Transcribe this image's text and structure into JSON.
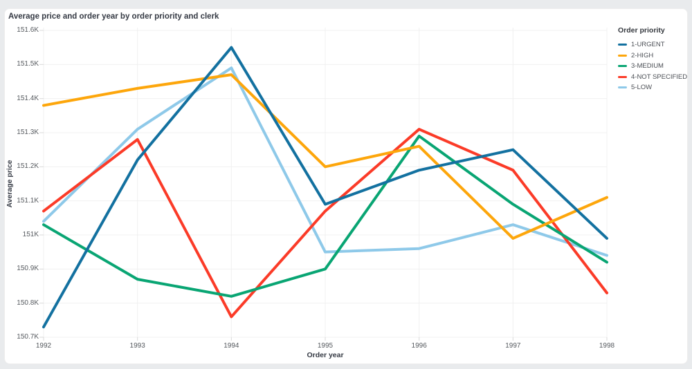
{
  "page": {
    "background": "#e9ebed",
    "card_background": "#ffffff"
  },
  "header": {
    "title": "Average price and order year by order priority and clerk"
  },
  "legend": {
    "title": "Order priority"
  },
  "colors": {
    "grid": "#f0f0f0",
    "tick_mark": "#d9d9d9",
    "tick_text": "#55595e",
    "axis_title_text": "#353a44"
  },
  "chart_data": {
    "type": "line",
    "title": "Average price and order year by order priority and clerk",
    "xlabel": "Order year",
    "ylabel": "Average price",
    "x": [
      1992,
      1993,
      1994,
      1995,
      1996,
      1997,
      1998
    ],
    "x_tick_labels": [
      "1992",
      "1993",
      "1994",
      "1995",
      "1996",
      "1997",
      "1998"
    ],
    "y_tick_labels": [
      "151.6K",
      "151.5K",
      "151.4K",
      "151.3K",
      "151.2K",
      "151.1K",
      "151K",
      "150.9K",
      "150.8K",
      "150.7K"
    ],
    "ylim": [
      150.7,
      151.6
    ],
    "unit": "K",
    "grid": true,
    "legend_position": "top-right",
    "legend_title": "Order priority",
    "series": [
      {
        "name": "1-URGENT",
        "color": "#1371a0",
        "values": [
          150.73,
          151.22,
          151.55,
          151.09,
          151.19,
          151.25,
          150.99
        ]
      },
      {
        "name": "2-HIGH",
        "color": "#fda60b",
        "values": [
          151.38,
          151.43,
          151.47,
          151.2,
          151.26,
          150.99,
          151.11
        ]
      },
      {
        "name": "3-MEDIUM",
        "color": "#09a573",
        "values": [
          151.03,
          150.87,
          150.82,
          150.9,
          151.29,
          151.09,
          150.92
        ]
      },
      {
        "name": "4-NOT SPECIFIED",
        "color": "#fb3b28",
        "values": [
          151.07,
          151.28,
          150.76,
          151.07,
          151.31,
          151.19,
          150.83
        ]
      },
      {
        "name": "5-LOW",
        "color": "#8ec9e9",
        "values": [
          151.04,
          151.31,
          151.49,
          150.95,
          150.96,
          151.03,
          150.94
        ]
      }
    ]
  }
}
